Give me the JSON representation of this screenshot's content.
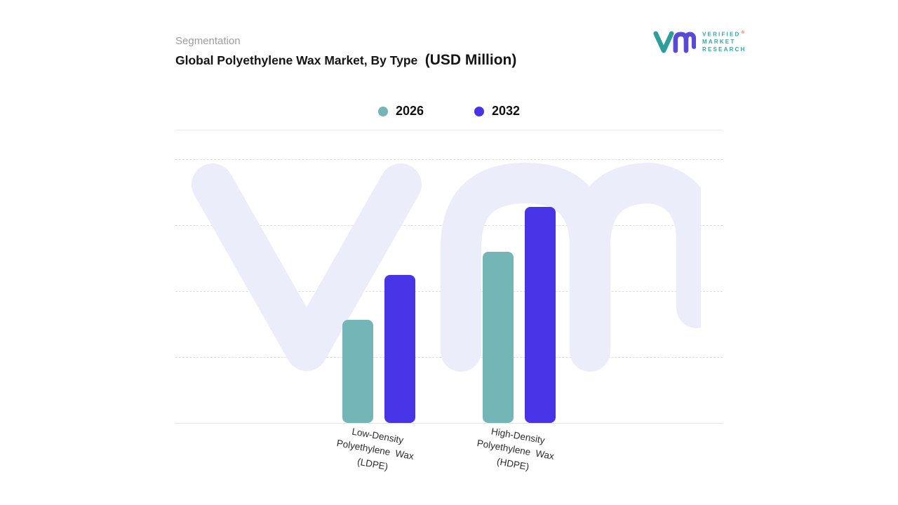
{
  "header": {
    "eyebrow": "Segmentation",
    "title": "Global Polyethylene Wax Market, By Type",
    "title_unit": "(USD Million)"
  },
  "logo": {
    "lines": [
      "VERIFIED",
      "MARKET",
      "RESEARCH"
    ],
    "registered": "®",
    "mark_v_color": "#2f9e9b",
    "mark_m_color": "#5a4bd6",
    "text_color": "#35a8a2"
  },
  "legend": [
    {
      "label": "2026",
      "color": "#74b5b8"
    },
    {
      "label": "2032",
      "color": "#4634e6"
    }
  ],
  "chart_data": {
    "type": "bar",
    "title": "Global Polyethylene Wax Market, By Type (USD Million)",
    "unit": "USD Million",
    "categories": [
      {
        "id": "ldpe",
        "lines": [
          "Low-Density",
          "Polyethylene  Wax",
          "(LDPE)"
        ]
      },
      {
        "id": "hdpe",
        "lines": [
          "High-Density",
          "Polyethylene  Wax",
          "(HDPE)"
        ]
      }
    ],
    "series": [
      {
        "name": "2026",
        "color": "#74b5b8",
        "values": [
          39,
          65
        ]
      },
      {
        "name": "2032",
        "color": "#4634e6",
        "values": [
          56,
          82
        ]
      }
    ],
    "ylim": [
      0,
      100
    ],
    "y_axis_labels_visible": false,
    "grid": "horizontal-dashed",
    "legend_position": "top-center",
    "watermark": "vmr-logo"
  }
}
